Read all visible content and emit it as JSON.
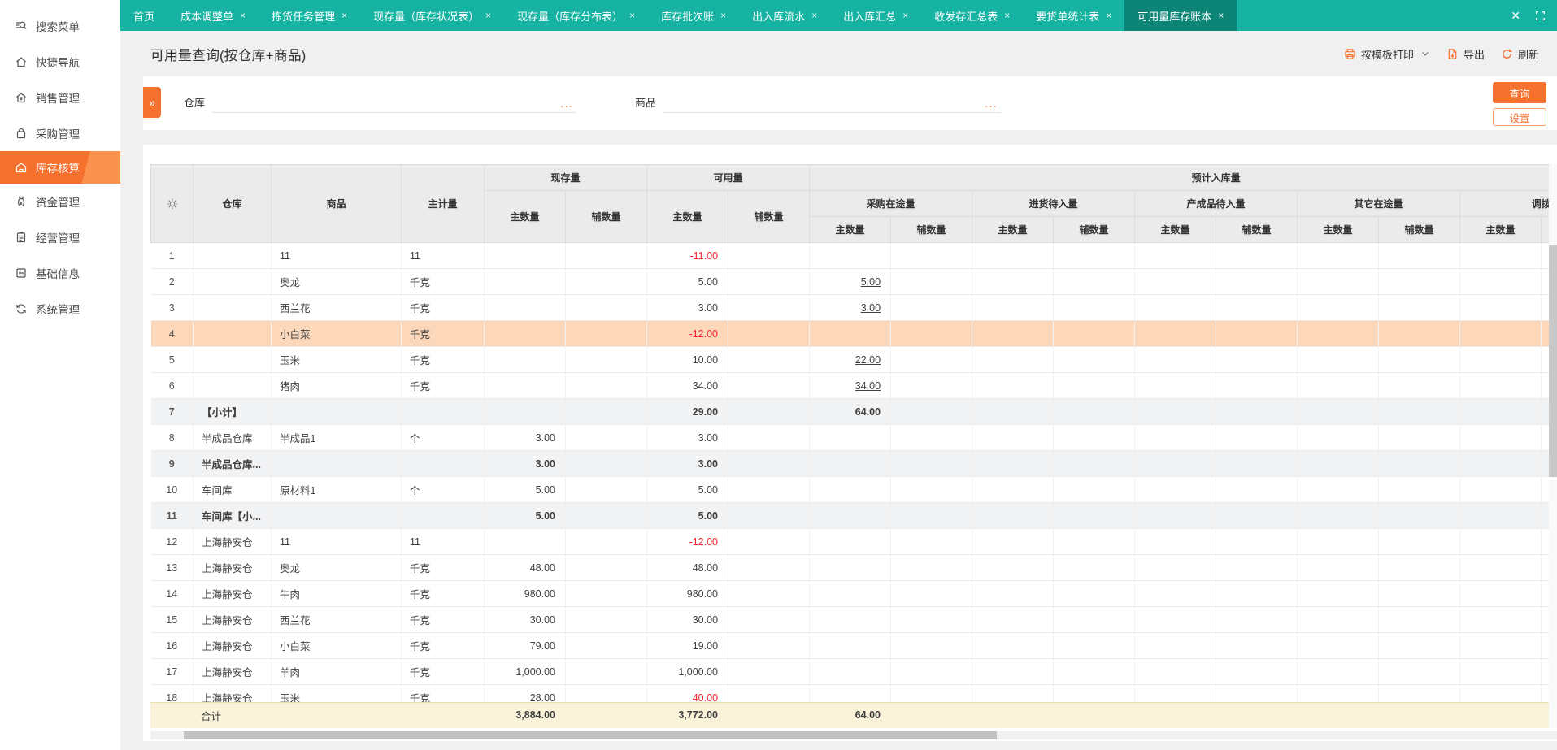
{
  "colors": {
    "teal": "#16b3a2",
    "teal_active_tab": "#0c8476",
    "orange": "#f7712e",
    "negative_red": "#f5222d",
    "highlight_row": "#fcd7ba",
    "subtotal_bg": "#f2f3f5",
    "total_bg": "#faf3d9"
  },
  "sidebar": {
    "items": [
      {
        "label": "搜索菜单",
        "icon": "search-icon",
        "active": false
      },
      {
        "label": "快捷导航",
        "icon": "home-icon",
        "active": false
      },
      {
        "label": "销售管理",
        "icon": "sales-icon",
        "active": false
      },
      {
        "label": "采购管理",
        "icon": "purchase-bag-icon",
        "active": false
      },
      {
        "label": "库存核算",
        "icon": "inventory-icon",
        "active": true
      },
      {
        "label": "资金管理",
        "icon": "money-bag-icon",
        "active": false
      },
      {
        "label": "经营管理",
        "icon": "clipboard-icon",
        "active": false
      },
      {
        "label": "基础信息",
        "icon": "base-info-icon",
        "active": false
      },
      {
        "label": "系统管理",
        "icon": "system-icon",
        "active": false
      }
    ]
  },
  "tabbar": {
    "tabs": [
      {
        "label": "首页",
        "closable": false,
        "active": false
      },
      {
        "label": "成本调整单",
        "closable": true,
        "active": false
      },
      {
        "label": "拣货任务管理",
        "closable": true,
        "active": false
      },
      {
        "label": "现存量（库存状况表）",
        "closable": true,
        "active": false
      },
      {
        "label": "现存量（库存分布表）",
        "closable": true,
        "active": false
      },
      {
        "label": "库存批次账",
        "closable": true,
        "active": false
      },
      {
        "label": "出入库流水",
        "closable": true,
        "active": false
      },
      {
        "label": "出入库汇总",
        "closable": true,
        "active": false
      },
      {
        "label": "收发存汇总表",
        "closable": true,
        "active": false
      },
      {
        "label": "要货单统计表",
        "closable": true,
        "active": false
      },
      {
        "label": "可用量库存账本",
        "closable": true,
        "active": true
      }
    ],
    "close_symbol": "×"
  },
  "page": {
    "title": "可用量查询(按仓库+商品)"
  },
  "toolbar": {
    "print": "按模板打印",
    "export": "导出",
    "refresh": "刷新"
  },
  "query": {
    "fields": [
      {
        "label": "仓库",
        "value": "",
        "trigger": "···"
      },
      {
        "label": "商品",
        "value": "",
        "trigger": "···"
      }
    ],
    "expand_symbol": "»",
    "search": "查询",
    "settings": "设置"
  },
  "table": {
    "fixed_cols": [
      "仓库",
      "商品",
      "主计量"
    ],
    "groups": [
      "现存量",
      "可用量",
      "预计入库量"
    ],
    "subgroups": [
      "采购在途量",
      "进货待入量",
      "产成品待入量",
      "其它在途量",
      "调拨",
      "辅数量"
    ],
    "qty_main": "主数量",
    "qty_aux": "辅数量",
    "rows": [
      {
        "n": "1",
        "wh": "",
        "gd": "11",
        "un": "11",
        "cm": "",
        "am": "-11.00",
        "pm": "",
        "neg": true,
        "link": false,
        "hl": false,
        "sub": false
      },
      {
        "n": "2",
        "wh": "",
        "gd": "奥龙",
        "un": "千克",
        "cm": "",
        "am": "5.00",
        "pm": "5.00",
        "neg": false,
        "link": true,
        "hl": false,
        "sub": false
      },
      {
        "n": "3",
        "wh": "",
        "gd": "西兰花",
        "un": "千克",
        "cm": "",
        "am": "3.00",
        "pm": "3.00",
        "neg": false,
        "link": true,
        "hl": false,
        "sub": false
      },
      {
        "n": "4",
        "wh": "",
        "gd": "小白菜",
        "un": "千克",
        "cm": "",
        "am": "-12.00",
        "pm": "",
        "neg": true,
        "link": false,
        "hl": true,
        "sub": false
      },
      {
        "n": "5",
        "wh": "",
        "gd": "玉米",
        "un": "千克",
        "cm": "",
        "am": "10.00",
        "pm": "22.00",
        "neg": false,
        "link": true,
        "hl": false,
        "sub": false
      },
      {
        "n": "6",
        "wh": "",
        "gd": "猪肉",
        "un": "千克",
        "cm": "",
        "am": "34.00",
        "pm": "34.00",
        "neg": false,
        "link": true,
        "hl": false,
        "sub": false
      },
      {
        "n": "7",
        "wh": "【小计】",
        "gd": "",
        "un": "",
        "cm": "",
        "am": "29.00",
        "pm": "64.00",
        "neg": false,
        "link": false,
        "hl": false,
        "sub": true
      },
      {
        "n": "8",
        "wh": "半成品仓库",
        "gd": "半成品1",
        "un": "个",
        "cm": "3.00",
        "am": "3.00",
        "pm": "",
        "neg": false,
        "link": false,
        "hl": false,
        "sub": false
      },
      {
        "n": "9",
        "wh": "半成品仓库...",
        "gd": "",
        "un": "",
        "cm": "3.00",
        "am": "3.00",
        "pm": "",
        "neg": false,
        "link": false,
        "hl": false,
        "sub": true
      },
      {
        "n": "10",
        "wh": "车间库",
        "gd": "原材料1",
        "un": "个",
        "cm": "5.00",
        "am": "5.00",
        "pm": "",
        "neg": false,
        "link": false,
        "hl": false,
        "sub": false
      },
      {
        "n": "11",
        "wh": "车间库【小...",
        "gd": "",
        "un": "",
        "cm": "5.00",
        "am": "5.00",
        "pm": "",
        "neg": false,
        "link": false,
        "hl": false,
        "sub": true
      },
      {
        "n": "12",
        "wh": "上海静安仓",
        "gd": "11",
        "un": "11",
        "cm": "",
        "am": "-12.00",
        "pm": "",
        "neg": true,
        "link": false,
        "hl": false,
        "sub": false
      },
      {
        "n": "13",
        "wh": "上海静安仓",
        "gd": "奥龙",
        "un": "千克",
        "cm": "48.00",
        "am": "48.00",
        "pm": "",
        "neg": false,
        "link": false,
        "hl": false,
        "sub": false
      },
      {
        "n": "14",
        "wh": "上海静安仓",
        "gd": "牛肉",
        "un": "千克",
        "cm": "980.00",
        "am": "980.00",
        "pm": "",
        "neg": false,
        "link": false,
        "hl": false,
        "sub": false
      },
      {
        "n": "15",
        "wh": "上海静安仓",
        "gd": "西兰花",
        "un": "千克",
        "cm": "30.00",
        "am": "30.00",
        "pm": "",
        "neg": false,
        "link": false,
        "hl": false,
        "sub": false
      },
      {
        "n": "16",
        "wh": "上海静安仓",
        "gd": "小白菜",
        "un": "千克",
        "cm": "79.00",
        "am": "19.00",
        "pm": "",
        "neg": false,
        "link": false,
        "hl": false,
        "sub": false
      },
      {
        "n": "17",
        "wh": "上海静安仓",
        "gd": "羊肉",
        "un": "千克",
        "cm": "1,000.00",
        "am": "1,000.00",
        "pm": "",
        "neg": false,
        "link": false,
        "hl": false,
        "sub": false
      },
      {
        "n": "18",
        "wh": "上海静安仓",
        "gd": "玉米",
        "un": "千克",
        "cm": "28.00",
        "am": "40.00",
        "pm": "",
        "neg": true,
        "link": false,
        "hl": false,
        "sub": false
      }
    ],
    "total": {
      "label": "合计",
      "cur_main": "3,884.00",
      "avail_main": "3,772.00",
      "po_main": "64.00"
    }
  }
}
